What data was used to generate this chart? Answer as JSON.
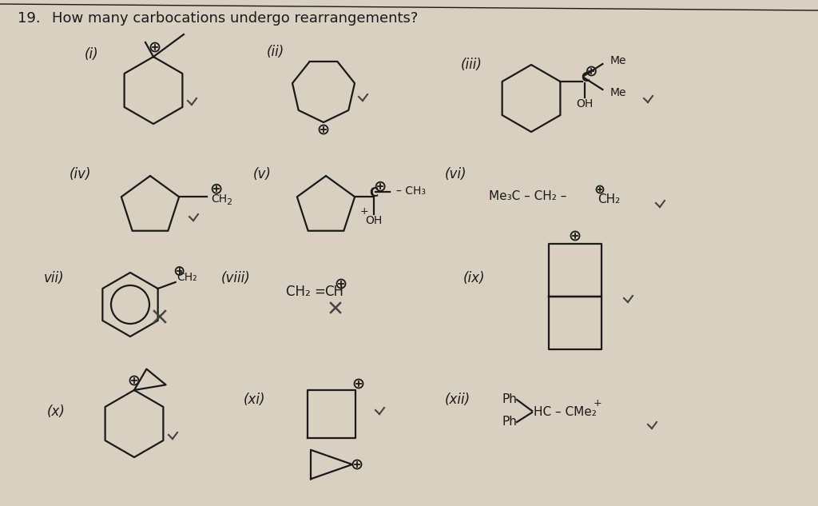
{
  "bg": "#d8d0c0",
  "tc": "#1a1a1a",
  "title_num": "19.",
  "title_txt": "How many carbocations undergo rearrangements?",
  "structures": {
    "i_label": "(i)",
    "ii_label": "(ii)",
    "iii_label": "(iii)",
    "iv_label": "(iv)",
    "v_label": "(v)",
    "vi_label": "(vi)",
    "vii_label": "vii)",
    "viii_label": "(viii)",
    "ix_label": "(ix)",
    "x_label": "(x)",
    "xi_label": "(xi)",
    "xii_label": "(xii)"
  }
}
